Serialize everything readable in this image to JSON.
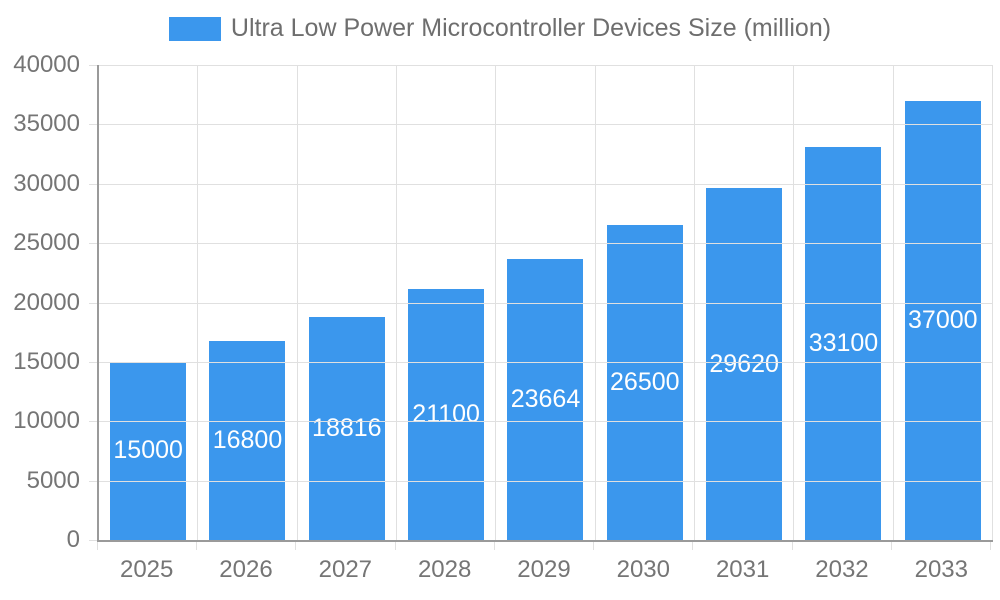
{
  "legend": {
    "label": "Ultra Low Power Microcontroller Devices Size (million)",
    "swatch_color": "#3B97ED"
  },
  "chart_data": {
    "type": "bar",
    "title": "",
    "xlabel": "",
    "ylabel": "",
    "categories": [
      "2025",
      "2026",
      "2027",
      "2028",
      "2029",
      "2030",
      "2031",
      "2032",
      "2033"
    ],
    "values": [
      15000,
      16800,
      18816,
      21100,
      23664,
      26500,
      29620,
      33100,
      37000
    ],
    "series_name": "Ultra Low Power Microcontroller Devices Size (million)",
    "ylim": [
      0,
      40000
    ],
    "ytick_step": 5000,
    "yticks": [
      0,
      5000,
      10000,
      15000,
      20000,
      25000,
      30000,
      35000,
      40000
    ],
    "grid": true,
    "legend_position": "top",
    "bar_color": "#3B97ED",
    "bar_label_color": "#ffffff",
    "axis_line_color": "#9a9a9a",
    "gridline_color": "#e0e0e0",
    "tick_label_color": "#757575"
  }
}
